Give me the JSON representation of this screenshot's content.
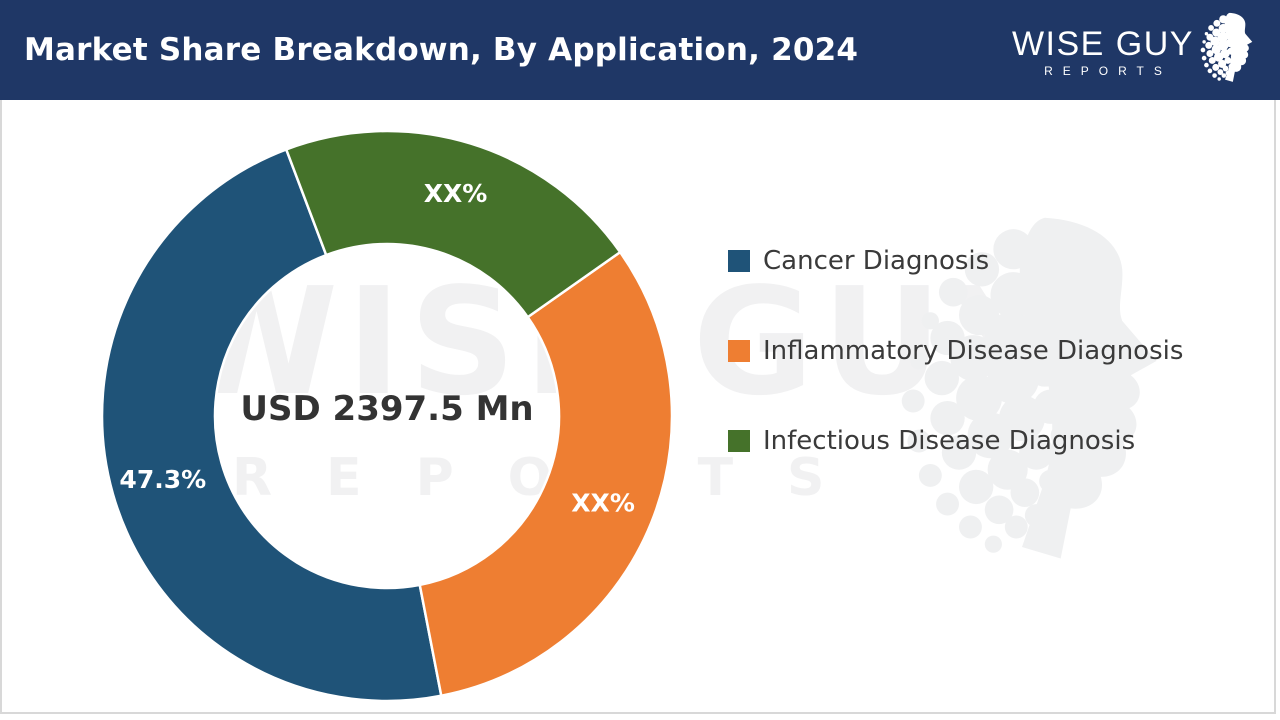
{
  "header": {
    "title": "Market Share Breakdown, By Application, 2024",
    "logo": {
      "wordmark": "WISE GUY",
      "reports": "REPORTS"
    }
  },
  "watermark": {
    "line1": "WISE GUY",
    "line2": "REPORTS"
  },
  "chart_data": {
    "type": "donut",
    "center_label": "USD 2397.5 Mn",
    "start_angle_deg": 110.7,
    "direction": "counterclockwise",
    "legend_position": "right",
    "segments": [
      {
        "name": "Cancer Diagnosis",
        "label": "47.3%",
        "value": 47.3,
        "color": "#1f5378"
      },
      {
        "name": "Inflammatory Disease Diagnosis",
        "label": "XX%",
        "value": 31.7,
        "color": "#ee7e32"
      },
      {
        "name": "Infectious Disease Diagnosis",
        "label": "XX%",
        "value": 21.0,
        "color": "#45722a"
      }
    ]
  },
  "colors": {
    "header_bg": "#1f3766",
    "border": "#d8d8d8",
    "legend_text": "#3a3a3a",
    "center_text": "#333333",
    "slice_label": "#ffffff",
    "watermark": "#f1f1f2"
  }
}
